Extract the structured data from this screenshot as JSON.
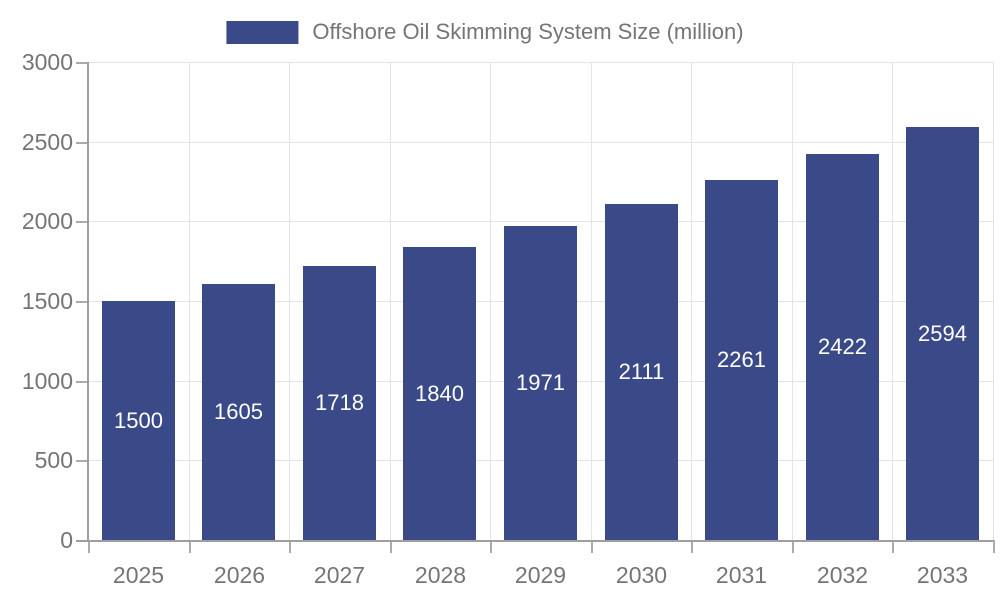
{
  "legend": {
    "label": "Offshore Oil Skimming System Size (million)"
  },
  "chart_data": {
    "type": "bar",
    "title": "Offshore Oil Skimming System Size (million)",
    "categories": [
      "2025",
      "2026",
      "2027",
      "2028",
      "2029",
      "2030",
      "2031",
      "2032",
      "2033"
    ],
    "values": [
      1500,
      1605,
      1718,
      1840,
      1971,
      2111,
      2261,
      2422,
      2594
    ],
    "series": [
      {
        "name": "Offshore Oil Skimming System Size (million)",
        "values": [
          1500,
          1605,
          1718,
          1840,
          1971,
          2111,
          2261,
          2422,
          2594
        ]
      }
    ],
    "xlabel": "",
    "ylabel": "",
    "ylim": [
      0,
      3000
    ],
    "yticks": [
      0,
      500,
      1000,
      1500,
      2000,
      2500,
      3000
    ],
    "grid": true,
    "legend_position": "top-center",
    "value_labels": "inside-center",
    "colors": {
      "bar": "#3a4a88",
      "value_label": "#ffffff",
      "grid": "#e3e3e3",
      "axis": "#9e9e9e",
      "tick": "#ababab",
      "tick_label": "#757575",
      "background": "#ffffff"
    }
  }
}
